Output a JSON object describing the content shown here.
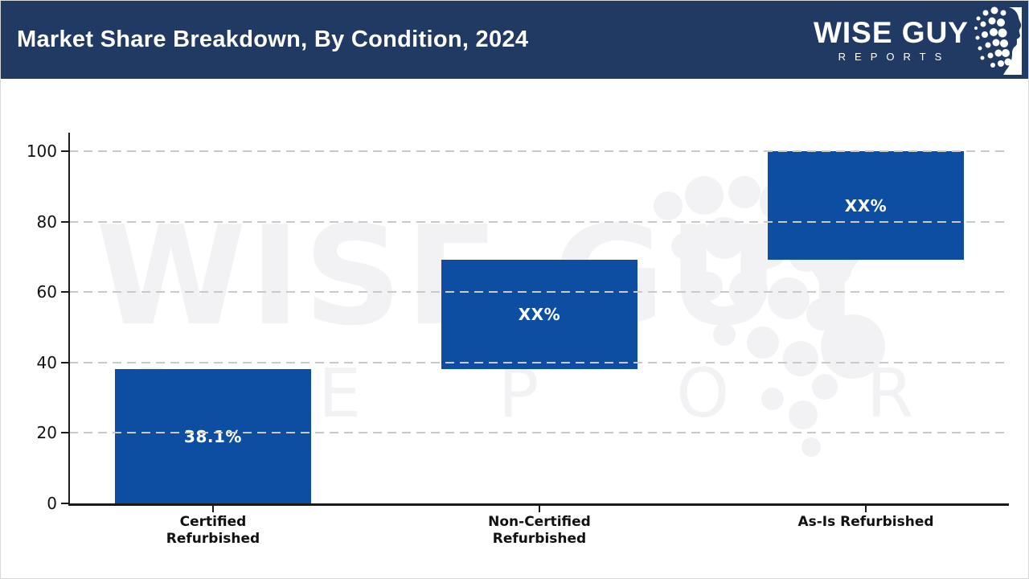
{
  "header": {
    "title": "Market Share Breakdown, By Condition, 2024",
    "background_color": "#213a64",
    "logo": {
      "line1": "WISE GUY",
      "line2": "REPORTS"
    }
  },
  "watermark": {
    "line1": "WISE GUY",
    "line2": "R E P O R T S"
  },
  "chart_data": {
    "type": "bar",
    "subtype": "floating-waterfall",
    "title": "Market Share Breakdown, By Condition, 2024",
    "categories": [
      "Certified Refurbished",
      "Non-Certified Refurbished",
      "As-Is Refurbished"
    ],
    "category_lines": [
      [
        "Certified",
        "Refurbished"
      ],
      [
        "Non-Certified",
        "Refurbished"
      ],
      [
        "As-Is Refurbished"
      ]
    ],
    "segments": [
      {
        "category": "Certified Refurbished",
        "start": 0,
        "end": 38.1,
        "value": 38.1,
        "label": "38.1%"
      },
      {
        "category": "Non-Certified Refurbished",
        "start": 38.1,
        "end": 69.1,
        "value": 31.0,
        "label": "XX%"
      },
      {
        "category": "As-Is Refurbished",
        "start": 69.1,
        "end": 100,
        "value": 30.9,
        "label": "XX%"
      }
    ],
    "xlabel": "",
    "ylabel": "",
    "ylim": [
      0,
      100
    ],
    "yticks": [
      0,
      20,
      40,
      60,
      80,
      100
    ],
    "grid": "horizontal-dashed",
    "legend": "none",
    "bar_color": "#0d4da2",
    "bar_label_color": "#ffffff",
    "axis_color": "#1a1a1a",
    "grid_color": "#c9c9c9"
  }
}
